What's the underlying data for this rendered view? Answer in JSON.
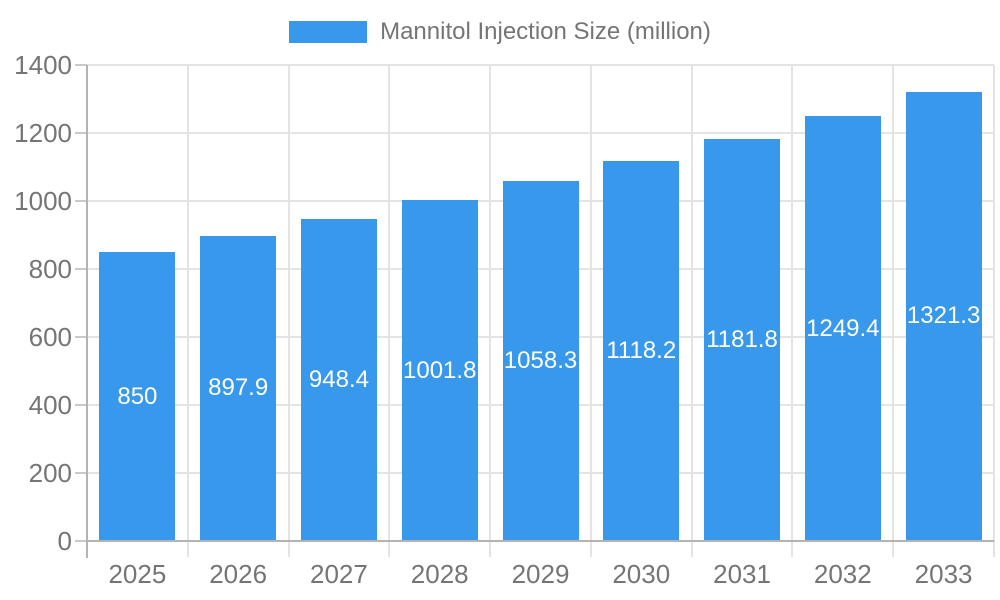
{
  "legend": {
    "label": "Mannitol Injection Size (million)"
  },
  "chart_data": {
    "type": "bar",
    "title": "Mannitol Injection Size (million)",
    "xlabel": "",
    "ylabel": "",
    "categories": [
      "2025",
      "2026",
      "2027",
      "2028",
      "2029",
      "2030",
      "2031",
      "2032",
      "2033"
    ],
    "series": [
      {
        "name": "Mannitol Injection Size (million)",
        "values": [
          850,
          897.9,
          948.4,
          1001.8,
          1058.3,
          1118.2,
          1181.8,
          1249.4,
          1321.3
        ]
      }
    ],
    "value_labels": [
      "850",
      "897.9",
      "948.4",
      "1001.8",
      "1058.3",
      "1118.2",
      "1181.8",
      "1249.4",
      "1321.3"
    ],
    "ylim": [
      0,
      1400
    ],
    "ytick_step": 200,
    "yticks": [
      "0",
      "200",
      "400",
      "600",
      "800",
      "1000",
      "1200",
      "1400"
    ],
    "grid": true,
    "legend_position": "top-center",
    "colors": {
      "bar": "#3899EC",
      "grid": "#e4e4e4",
      "axis": "#b3b3b3",
      "tick": "#c9c9c9",
      "label_text": "#757575",
      "value_text": "#ffffff",
      "background": "#ffffff"
    }
  }
}
